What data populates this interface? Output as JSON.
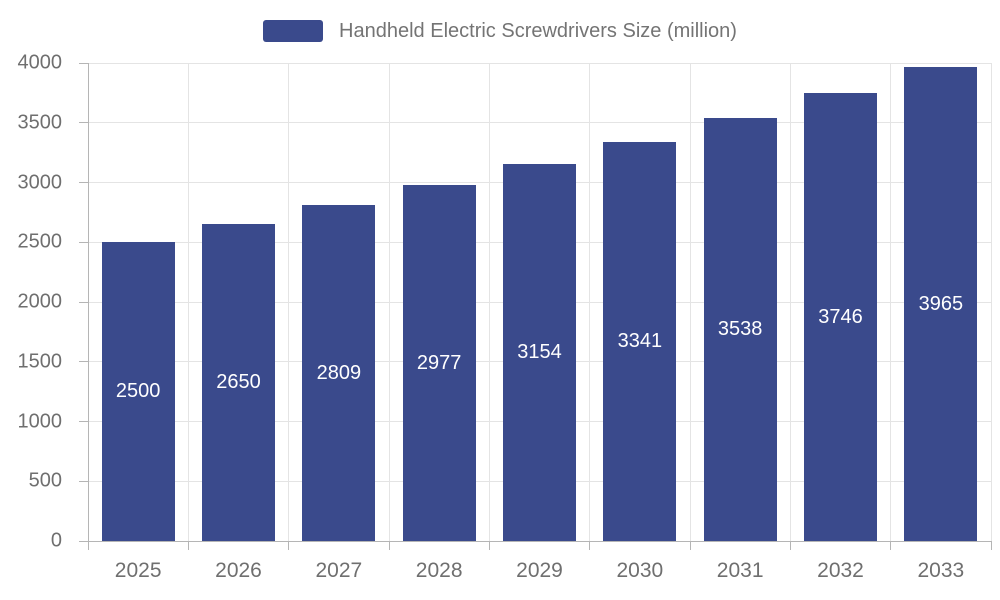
{
  "legend": {
    "label": "Handheld Electric Screwdrivers Size (million)"
  },
  "chart_data": {
    "type": "bar",
    "title": "Handheld Electric Screwdrivers Size (million)",
    "categories": [
      "2025",
      "2026",
      "2027",
      "2028",
      "2029",
      "2030",
      "2031",
      "2032",
      "2033"
    ],
    "series": [
      {
        "name": "Handheld Electric Screwdrivers Size (million)",
        "values": [
          2500,
          2650,
          2809,
          2977,
          3154,
          3341,
          3538,
          3746,
          3965
        ]
      }
    ],
    "value_labels": [
      "2500",
      "2650",
      "2809",
      "2977",
      "3154",
      "3341",
      "3538",
      "3746",
      "3965"
    ],
    "xlabel": "",
    "ylabel": "",
    "ylim": [
      0,
      4000
    ],
    "yticks": [
      0,
      500,
      1000,
      1500,
      2000,
      2500,
      3000,
      3500,
      4000
    ],
    "grid": true,
    "legend_position": "top",
    "colors": {
      "bar": "#3A4A8C",
      "bar_label": "#FFFFFF",
      "axis_text": "#6F6F6F",
      "legend_text": "#747474",
      "grid_line": "#E4E4E4",
      "axis_line": "#B5B5B5",
      "background": "#FFFFFF"
    }
  }
}
